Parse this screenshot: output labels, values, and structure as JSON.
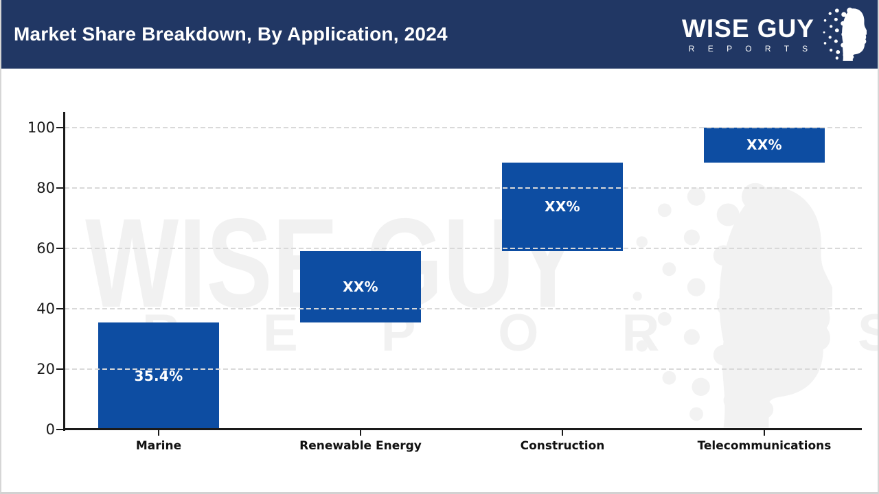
{
  "header": {
    "title": "Market Share Breakdown, By Application, 2024",
    "logo": {
      "line1": "WISE GUY",
      "line2": "R E P O R T S"
    }
  },
  "watermark": {
    "line1": "WISE GUY",
    "line2": "R E P O R T S"
  },
  "colors": {
    "header_bg": "#213764",
    "bar": "#0d4da2",
    "bar_label": "#ffffff",
    "axis": "#1a1a1a",
    "grid": "#d9d9d9",
    "watermark": "#f1f1f1"
  },
  "chart_data": {
    "type": "bar",
    "subtype": "waterfall",
    "title": "Market Share Breakdown, By Application, 2024",
    "categories": [
      "Marine",
      "Renewable Energy",
      "Construction",
      "Telecommunications"
    ],
    "segments": [
      {
        "category": "Marine",
        "start": 0,
        "end": 35.4,
        "label": "35.4%"
      },
      {
        "category": "Renewable Energy",
        "start": 35.4,
        "end": 59,
        "label": "XX%"
      },
      {
        "category": "Construction",
        "start": 59,
        "end": 88.5,
        "label": "XX%"
      },
      {
        "category": "Telecommunications",
        "start": 88.5,
        "end": 100,
        "label": "XX%"
      }
    ],
    "yticks": [
      0,
      20,
      40,
      60,
      80,
      100
    ],
    "ylim": [
      0,
      105
    ],
    "xlabel": "",
    "ylabel": "",
    "grid": "horizontal-dashed",
    "legend": "none"
  }
}
